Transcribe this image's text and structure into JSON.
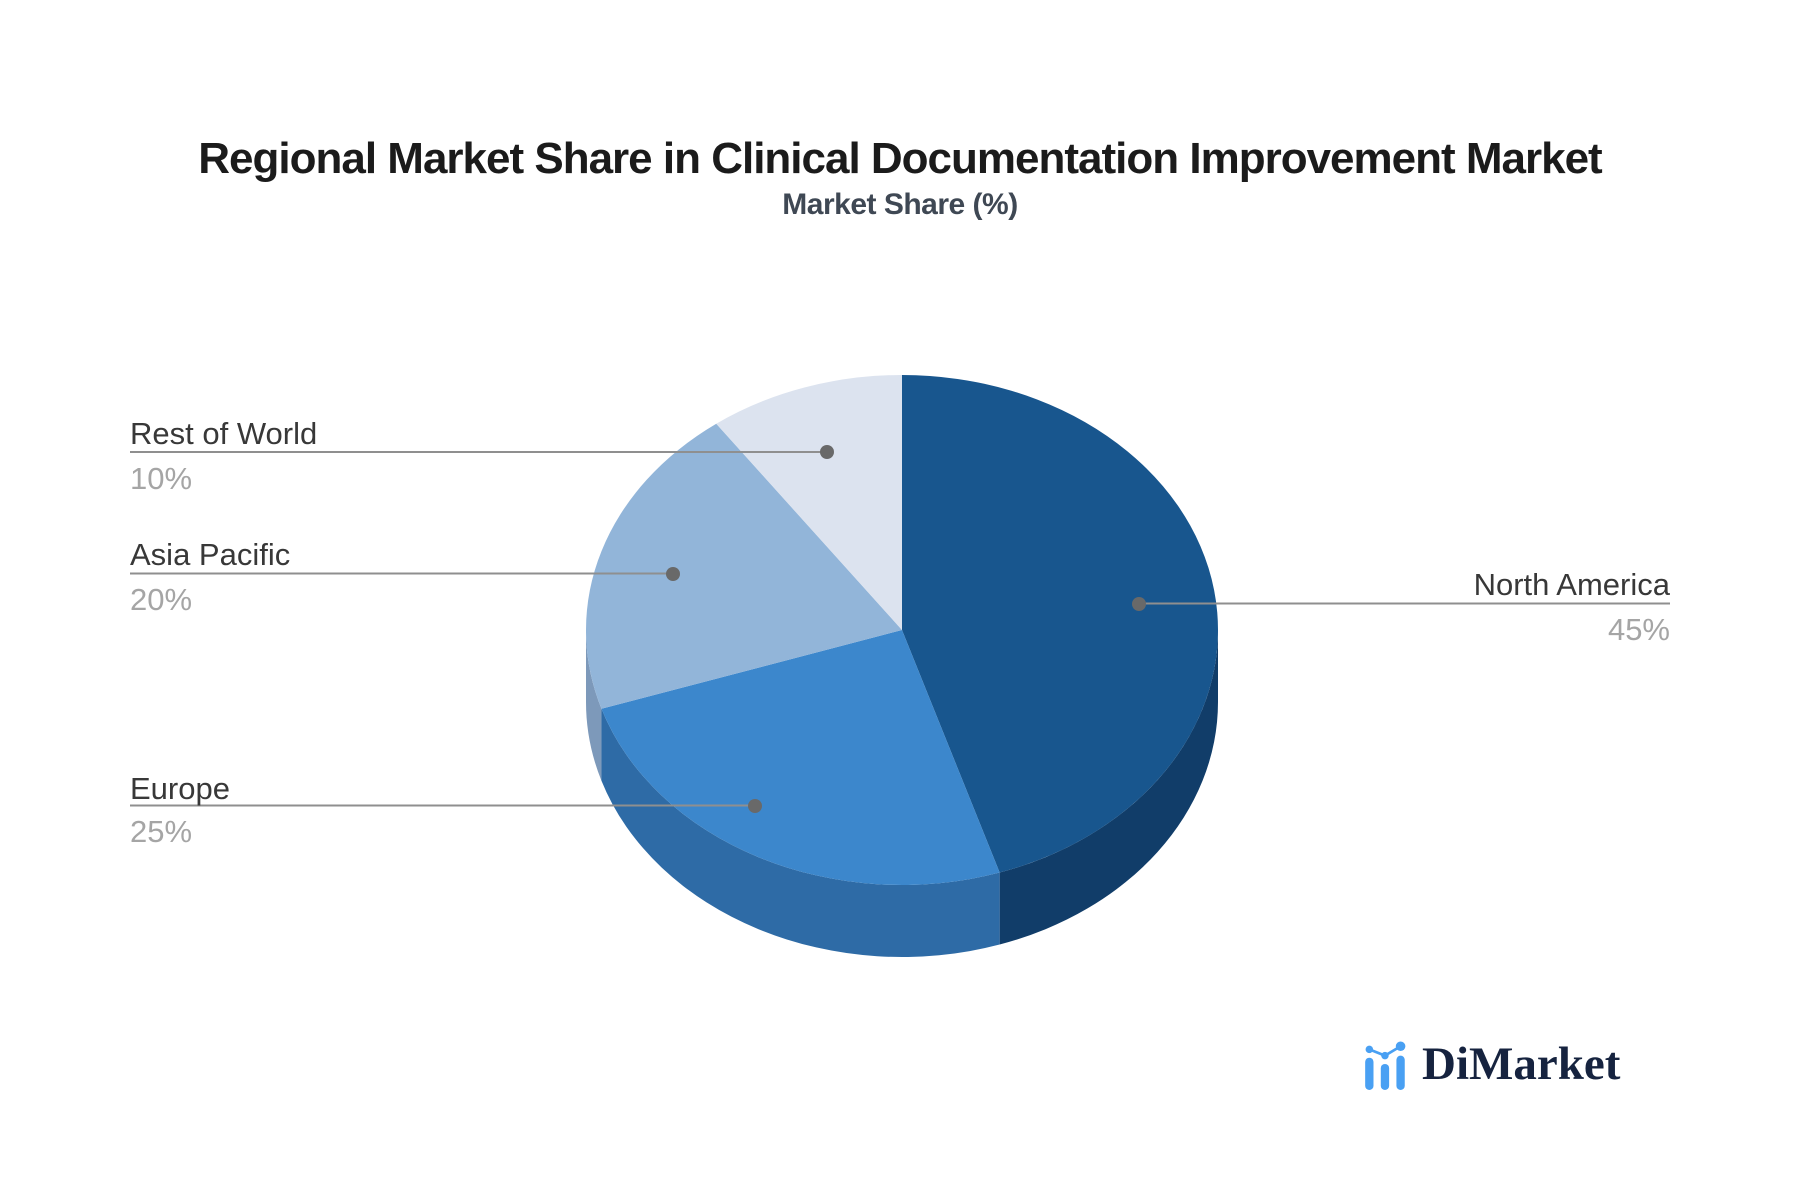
{
  "chart_data": {
    "type": "pie",
    "title": "Regional Market Share in Clinical Documentation Improvement Market",
    "subtitle": "Market Share (%)",
    "unit": "%",
    "style": "3d-pie",
    "start_angle_deg": 0,
    "direction": "clockwise",
    "legend_position": "none",
    "background": "#ffffff",
    "slices": [
      {
        "label": "North America",
        "value": 45,
        "pct_label": "45%",
        "color": "#18568E",
        "side_color": "#113D69"
      },
      {
        "label": "Europe",
        "value": 25,
        "pct_label": "25%",
        "color": "#3C87CC",
        "side_color": "#2E6BA6"
      },
      {
        "label": "Asia Pacific",
        "value": 20,
        "pct_label": "20%",
        "color": "#92B5D9",
        "side_color": "#7D99BA"
      },
      {
        "label": "Rest of World",
        "value": 10,
        "pct_label": "10%",
        "color": "#DCE3EF",
        "side_color": "#C3CCDC"
      }
    ],
    "annotation_colors": {
      "leader_line": "#8f8f8f",
      "leader_dot": "#696969",
      "label_text": "#383838",
      "pct_text": "#a5a5a5"
    }
  },
  "brand": {
    "name": "DiMarket",
    "icon_color": "#49A0F3",
    "text_color": "#16233f"
  }
}
